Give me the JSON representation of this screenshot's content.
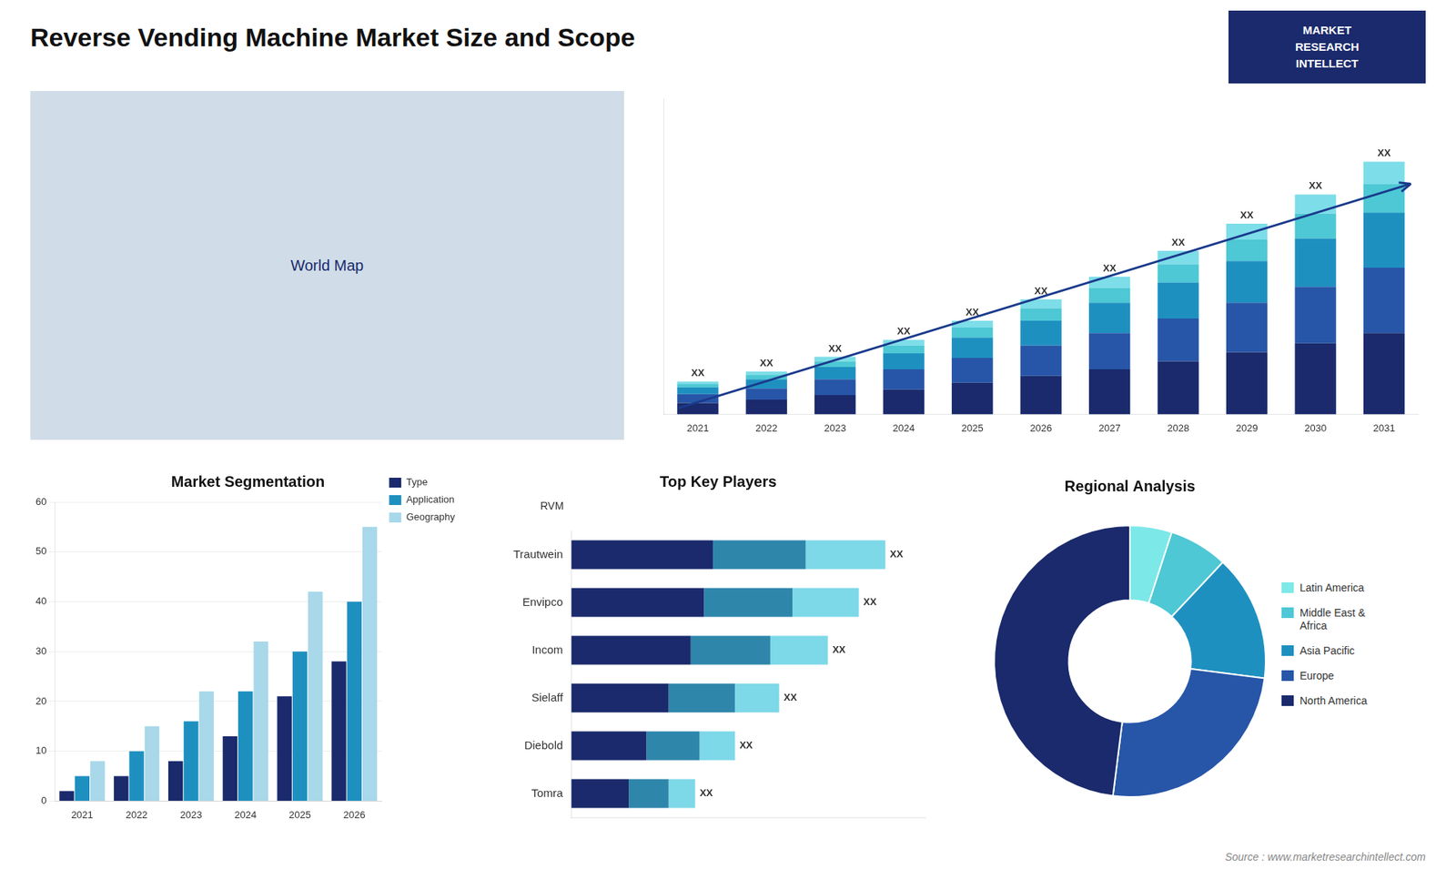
{
  "title": "Reverse Vending Machine Market Size and Scope",
  "annotations": [
    "Source : www.marketresearchintellect.com",
    "MARKET",
    "RESEARCH",
    "INTELLECT",
    "World Map"
  ],
  "chart_data": [
    {
      "type": "bar",
      "stacked": true,
      "categories": [
        "2021",
        "2022",
        "2023",
        "2024",
        "2025",
        "2026",
        "2027",
        "2028",
        "2029",
        "2030",
        "2031"
      ],
      "series": [
        {
          "color": "#1a2a6c",
          "values": [
            1.0,
            1.3,
            1.7,
            2.2,
            2.8,
            3.4,
            4.0,
            4.7,
            5.5,
            6.3,
            7.2
          ]
        },
        {
          "color": "#2756a8",
          "values": [
            0.8,
            1.0,
            1.4,
            1.8,
            2.2,
            2.7,
            3.2,
            3.8,
            4.4,
            5.0,
            5.8
          ]
        },
        {
          "color": "#1e90c0",
          "values": [
            0.6,
            0.8,
            1.1,
            1.4,
            1.8,
            2.2,
            2.7,
            3.2,
            3.7,
            4.3,
            4.9
          ]
        },
        {
          "color": "#4dc8d4",
          "values": [
            0.3,
            0.4,
            0.5,
            0.7,
            0.9,
            1.1,
            1.3,
            1.6,
            1.9,
            2.2,
            2.5
          ]
        },
        {
          "color": "#7ddde8",
          "values": [
            0.2,
            0.3,
            0.4,
            0.5,
            0.6,
            0.8,
            1.0,
            1.2,
            1.4,
            1.7,
            2.0
          ]
        }
      ],
      "ylim": [
        0,
        28
      ],
      "yticks": [],
      "tick_labels": "x",
      "grid": false,
      "annotations": [
        {
          "category": "2021",
          "text": "XX"
        },
        {
          "category": "2022",
          "text": "XX"
        },
        {
          "category": "2023",
          "text": "XX"
        },
        {
          "category": "2024",
          "text": "XX"
        },
        {
          "category": "2025",
          "text": "XX"
        },
        {
          "category": "2026",
          "text": "XX"
        },
        {
          "category": "2027",
          "text": "XX"
        },
        {
          "category": "2028",
          "text": "XX"
        },
        {
          "category": "2029",
          "text": "XX"
        },
        {
          "category": "2030",
          "text": "XX"
        },
        {
          "category": "2031",
          "text": "XX"
        }
      ]
    },
    {
      "type": "bar",
      "title": "Market Segmentation",
      "categories": [
        "2021",
        "2022",
        "2023",
        "2024",
        "2025",
        "2026"
      ],
      "series": [
        {
          "name": "Type",
          "color": "#1a2a6c",
          "values": [
            2,
            5,
            8,
            13,
            21,
            28
          ]
        },
        {
          "name": "Application",
          "color": "#1e90c0",
          "values": [
            5,
            10,
            16,
            22,
            30,
            40
          ]
        },
        {
          "name": "Geography",
          "color": "#a8d8ea",
          "values": [
            8,
            15,
            22,
            32,
            42,
            55
          ]
        }
      ],
      "ylim": [
        0,
        60
      ],
      "yticks": [
        0,
        10,
        20,
        30,
        40,
        50,
        60
      ],
      "grid": true,
      "legend": "right"
    },
    {
      "type": "bar",
      "orientation": "horizontal",
      "stacked": true,
      "title": "Top Key Players",
      "categories": [
        "Trautwein",
        "Envipco",
        "Incom",
        "Sielaff",
        "Diebold",
        "Tomra"
      ],
      "series": [
        {
          "color": "#1a2a6c",
          "values": [
            3.2,
            3.0,
            2.7,
            2.2,
            1.7,
            1.3
          ]
        },
        {
          "color": "#2e86ab",
          "values": [
            2.1,
            2.0,
            1.8,
            1.5,
            1.2,
            0.9
          ]
        },
        {
          "color": "#7dd8e8",
          "values": [
            1.8,
            1.5,
            1.3,
            1.0,
            0.8,
            0.6
          ]
        }
      ],
      "xlim": [
        0,
        8
      ],
      "xticks": [],
      "tick_labels": "y",
      "grid": false,
      "annotations": [
        {
          "text": "RVM"
        },
        {
          "category": "Trautwein",
          "text": "XX"
        },
        {
          "category": "Envipco",
          "text": "XX"
        },
        {
          "category": "Incom",
          "text": "XX"
        },
        {
          "category": "Sielaff",
          "text": "XX"
        },
        {
          "category": "Diebold",
          "text": "XX"
        },
        {
          "category": "Tomra",
          "text": "XX"
        }
      ]
    },
    {
      "type": "doughnut",
      "title": "Regional Analysis",
      "categories": [
        "Latin America",
        "Middle East &\nAfrica",
        "Asia Pacific",
        "Europe",
        "North America"
      ],
      "values": [
        5,
        7,
        15,
        25,
        48
      ],
      "colors": [
        "#7de8e8",
        "#4dc8d4",
        "#1e90c0",
        "#2756a8",
        "#1a2a6c"
      ],
      "legend": "right"
    }
  ]
}
